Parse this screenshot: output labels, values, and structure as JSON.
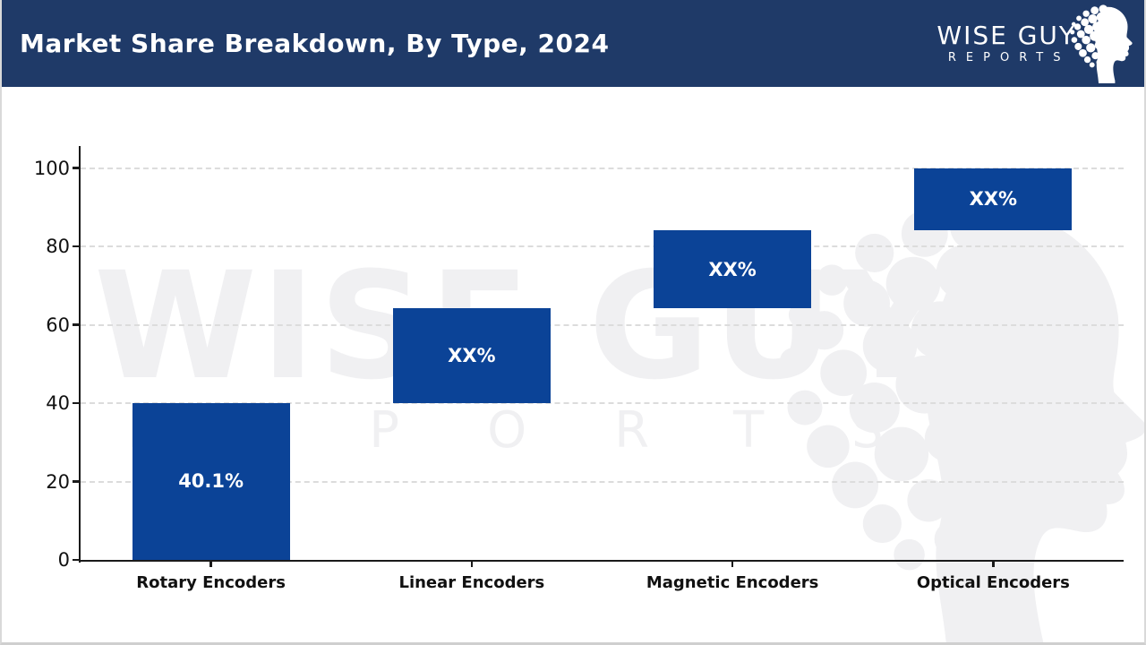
{
  "header": {
    "title": "Market Share Breakdown, By Type, 2024",
    "logo": {
      "line1": "WISE GUY",
      "line2": "REPORTS"
    }
  },
  "watermark": {
    "line1": "WISE GUY",
    "line2": "REPORTS"
  },
  "colors": {
    "header_bg": "#1F3A68",
    "bar": "#0B4397",
    "bar_label": "#FFFFFF",
    "grid": "#DCDCDC",
    "axis": "#1A1A1A",
    "watermark": "#F0F0F2"
  },
  "chart_data": {
    "type": "bar",
    "variant": "waterfall-floating-bars",
    "title": "Market Share Breakdown, By Type, 2024",
    "categories": [
      "Rotary Encoders",
      "Linear Encoders",
      "Magnetic Encoders",
      "Optical Encoders"
    ],
    "segments": [
      {
        "category": "Rotary Encoders",
        "start": 0,
        "end": 40.1,
        "label": "40.1%"
      },
      {
        "category": "Linear Encoders",
        "start": 40.1,
        "end": 64.2,
        "label": "XX%"
      },
      {
        "category": "Magnetic Encoders",
        "start": 64.2,
        "end": 84.1,
        "label": "XX%"
      },
      {
        "category": "Optical Encoders",
        "start": 84.1,
        "end": 100,
        "label": "XX%"
      }
    ],
    "xlabel": "",
    "ylabel": "",
    "ylim": [
      0,
      100
    ],
    "yticks": [
      0,
      20,
      40,
      60,
      80,
      100
    ],
    "grid": "horizontal-dashed",
    "legend": "none"
  }
}
